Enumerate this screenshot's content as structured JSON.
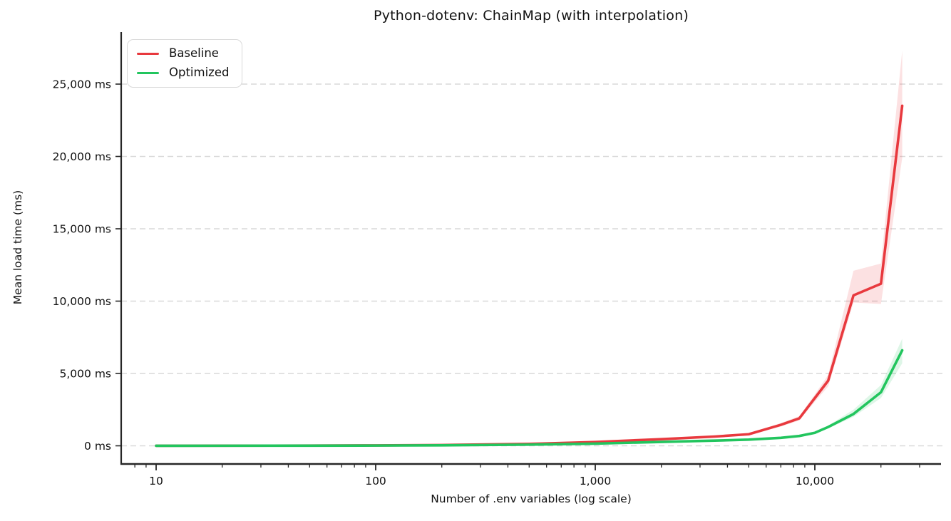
{
  "title": "Python-dotenv: ChainMap (with interpolation)",
  "chart_data": {
    "type": "line",
    "title": "Python-dotenv: ChainMap (with interpolation)",
    "xlabel": "Number of .env variables (log scale)",
    "ylabel": "Mean load time (ms)",
    "x_scale": "log",
    "grid": "horizontal-dashed",
    "legend_position": "top-left",
    "x_range": [
      7,
      37500
    ],
    "ylim": [
      0,
      27500
    ],
    "x": [
      10,
      20,
      50,
      100,
      200,
      500,
      1000,
      2000,
      3500,
      5000,
      7000,
      8500,
      10000,
      11500,
      15000,
      20000,
      25000
    ],
    "series": [
      {
        "name": "Baseline",
        "color": "#e8393e",
        "band_color": "rgba(232,57,62,0.15)",
        "values": [
          5,
          8,
          15,
          28,
          55,
          130,
          260,
          460,
          640,
          800,
          1450,
          1900,
          3300,
          4500,
          10400,
          11200,
          23500
        ],
        "band_low": [
          4,
          7,
          13,
          25,
          50,
          120,
          245,
          430,
          600,
          750,
          1330,
          1750,
          3050,
          4100,
          9900,
          9800,
          19900
        ],
        "band_high": [
          6,
          9,
          17,
          31,
          60,
          140,
          275,
          490,
          680,
          850,
          1570,
          2050,
          3550,
          4900,
          12100,
          12600,
          27300
        ]
      },
      {
        "name": "Optimized",
        "color": "#22c55e",
        "band_color": "rgba(34,197,94,0.15)",
        "values": [
          4,
          6,
          10,
          18,
          35,
          80,
          150,
          270,
          360,
          430,
          550,
          680,
          900,
          1300,
          2200,
          3700,
          6600
        ],
        "band_low": [
          3,
          5,
          9,
          16,
          32,
          75,
          143,
          255,
          345,
          410,
          520,
          640,
          840,
          1200,
          2000,
          3300,
          5700
        ],
        "band_high": [
          5,
          7,
          11,
          20,
          38,
          85,
          157,
          285,
          375,
          450,
          580,
          720,
          960,
          1400,
          2500,
          4200,
          7400
        ]
      }
    ],
    "yticks": {
      "values": [
        0,
        5000,
        10000,
        15000,
        20000,
        25000
      ],
      "labels": [
        "0 ms",
        "5,000 ms",
        "10,000 ms",
        "15,000 ms",
        "20,000 ms",
        "25,000 ms"
      ]
    },
    "xticks": {
      "values": [
        10,
        100,
        1000,
        10000
      ],
      "labels": [
        "10",
        "100",
        "1,000",
        "10,000"
      ]
    }
  },
  "colors": {
    "spine": "#262626",
    "gridline": "#d9d9d9",
    "text": "#111111",
    "legend_border": "#d9d9d9"
  }
}
